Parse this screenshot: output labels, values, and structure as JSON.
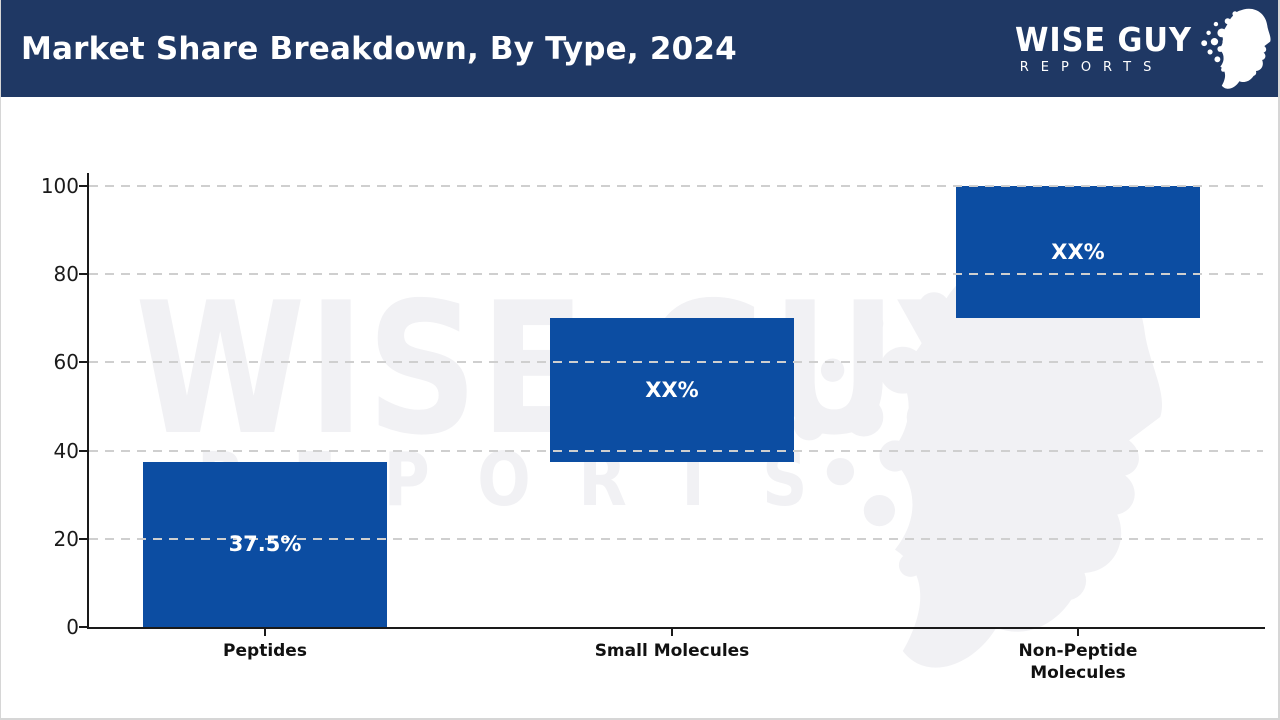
{
  "header": {
    "title": "Market Share Breakdown, By Type, 2024",
    "logo": {
      "line1": "WISE GUY",
      "line2": "REPORTS"
    }
  },
  "watermark": {
    "line1": "WISE GUY",
    "line2": "REPORTS"
  },
  "colors": {
    "header_bg": "#1F3864",
    "bar": "#0C4DA2",
    "grid": "#CFCFCF",
    "axis": "#1A1A1A",
    "bar_label": "#FFFFFF",
    "watermark": "#F1F1F4",
    "border": "#D6D6D6",
    "page_bg": "#FFFFFF"
  },
  "chart_data": {
    "type": "bar",
    "subtype": "stacked-waterfall-percentage",
    "title": "Market Share Breakdown, By Type, 2024",
    "categories": [
      "Peptides",
      "Small Molecules",
      "Non-Peptide Molecules"
    ],
    "category_label_lines": [
      [
        "Peptides"
      ],
      [
        "Small Molecules"
      ],
      [
        "Non-Peptide",
        "Molecules"
      ]
    ],
    "series": [
      {
        "name": "Peptides",
        "start": 0,
        "end": 37.5,
        "label": "37.5%"
      },
      {
        "name": "Small Molecules",
        "start": 37.5,
        "end": 70,
        "label": "XX%"
      },
      {
        "name": "Non-Peptide Molecules",
        "start": 70,
        "end": 100,
        "label": "XX%"
      }
    ],
    "y_ticks": [
      0,
      20,
      40,
      60,
      80,
      100
    ],
    "ylim": [
      0,
      103
    ],
    "xlabel": "",
    "ylabel": "",
    "grid": "dashed-horizontal",
    "legend": "none"
  }
}
